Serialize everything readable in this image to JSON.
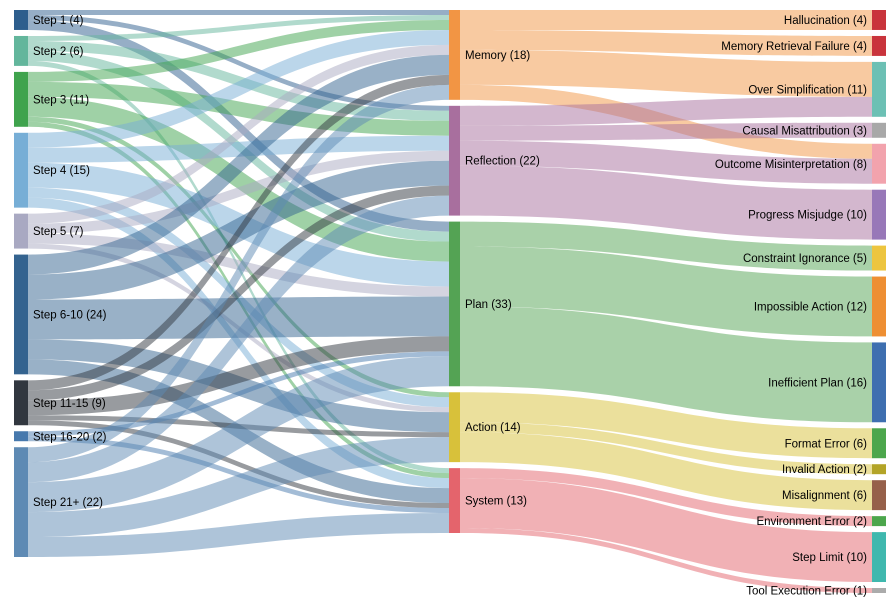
{
  "chart_data": {
    "type": "sankey",
    "title": "",
    "columns": [
      "step",
      "category",
      "error_type"
    ],
    "nodes": [
      {
        "id": "step-1",
        "label": "Step 1 (4)",
        "value": 4,
        "col": 0,
        "color": "#2d5e8d"
      },
      {
        "id": "step-2",
        "label": "Step 2 (6)",
        "value": 6,
        "col": 0,
        "color": "#63b69c"
      },
      {
        "id": "step-3",
        "label": "Step 3 (11)",
        "value": 11,
        "col": 0,
        "color": "#3fa34d"
      },
      {
        "id": "step-4",
        "label": "Step 4 (15)",
        "value": 15,
        "col": 0,
        "color": "#77aed6"
      },
      {
        "id": "step-5",
        "label": "Step 5 (7)",
        "value": 7,
        "col": 0,
        "color": "#a9a9c2"
      },
      {
        "id": "step-6-10",
        "label": "Step 6-10 (24)",
        "value": 24,
        "col": 0,
        "color": "#34638f"
      },
      {
        "id": "step-11-15",
        "label": "Step 11-15 (9)",
        "value": 9,
        "col": 0,
        "color": "#31373f"
      },
      {
        "id": "step-16-20",
        "label": "Step 16-20 (2)",
        "value": 2,
        "col": 0,
        "color": "#4779ad"
      },
      {
        "id": "step-21-plus",
        "label": "Step 21+ (22)",
        "value": 22,
        "col": 0,
        "color": "#5e8ab4"
      },
      {
        "id": "memory",
        "label": "Memory (18)",
        "value": 18,
        "col": 1,
        "color": "#f29544"
      },
      {
        "id": "reflection",
        "label": "Reflection (22)",
        "value": 22,
        "col": 1,
        "color": "#a86f9e"
      },
      {
        "id": "plan",
        "label": "Plan (33)",
        "value": 33,
        "col": 1,
        "color": "#54a354"
      },
      {
        "id": "action",
        "label": "Action (14)",
        "value": 14,
        "col": 1,
        "color": "#d8c13a"
      },
      {
        "id": "system",
        "label": "System (13)",
        "value": 13,
        "col": 1,
        "color": "#e4646c"
      },
      {
        "id": "hallucination",
        "label": "Hallucination (4)",
        "value": 4,
        "col": 2,
        "color": "#c9343c"
      },
      {
        "id": "memory-retrieval-failure",
        "label": "Memory Retrieval Failure (4)",
        "value": 4,
        "col": 2,
        "color": "#c9343c"
      },
      {
        "id": "over-simplification",
        "label": "Over Simplification (11)",
        "value": 11,
        "col": 2,
        "color": "#6cc0b4"
      },
      {
        "id": "causal-misattribution",
        "label": "Causal Misattribution (3)",
        "value": 3,
        "col": 2,
        "color": "#a8a8a8"
      },
      {
        "id": "outcome-misinterpretation",
        "label": "Outcome Misinterpretation (8)",
        "value": 8,
        "col": 2,
        "color": "#f2a3ad"
      },
      {
        "id": "progress-misjudge",
        "label": "Progress Misjudge (10)",
        "value": 10,
        "col": 2,
        "color": "#9878b8"
      },
      {
        "id": "constraint-ignorance",
        "label": "Constraint Ignorance (5)",
        "value": 5,
        "col": 2,
        "color": "#edc53f"
      },
      {
        "id": "impossible-action",
        "label": "Impossible Action (12)",
        "value": 12,
        "col": 2,
        "color": "#ee8f33"
      },
      {
        "id": "inefficient-plan",
        "label": "Inefficient Plan (16)",
        "value": 16,
        "col": 2,
        "color": "#3e6fb0"
      },
      {
        "id": "format-error",
        "label": "Format Error (6)",
        "value": 6,
        "col": 2,
        "color": "#4ca64c"
      },
      {
        "id": "invalid-action",
        "label": "Invalid Action (2)",
        "value": 2,
        "col": 2,
        "color": "#b3a427"
      },
      {
        "id": "misalignment",
        "label": "Misalignment (6)",
        "value": 6,
        "col": 2,
        "color": "#96604a"
      },
      {
        "id": "environment-error",
        "label": "Environment Error (2)",
        "value": 2,
        "col": 2,
        "color": "#4ca64c"
      },
      {
        "id": "step-limit",
        "label": "Step Limit (10)",
        "value": 10,
        "col": 2,
        "color": "#3fb8ae"
      },
      {
        "id": "tool-execution-error",
        "label": "Tool Execution Error (1)",
        "value": 1,
        "col": 2,
        "color": "#ababab"
      }
    ],
    "links": [
      {
        "source": "step-1",
        "target": "memory",
        "value": 1
      },
      {
        "source": "step-1",
        "target": "reflection",
        "value": 1
      },
      {
        "source": "step-1",
        "target": "plan",
        "value": 2
      },
      {
        "source": "step-2",
        "target": "memory",
        "value": 1
      },
      {
        "source": "step-2",
        "target": "reflection",
        "value": 2
      },
      {
        "source": "step-2",
        "target": "plan",
        "value": 2
      },
      {
        "source": "step-2",
        "target": "system",
        "value": 1
      },
      {
        "source": "step-3",
        "target": "memory",
        "value": 2
      },
      {
        "source": "step-3",
        "target": "reflection",
        "value": 3
      },
      {
        "source": "step-3",
        "target": "plan",
        "value": 4
      },
      {
        "source": "step-3",
        "target": "action",
        "value": 1
      },
      {
        "source": "step-3",
        "target": "system",
        "value": 1
      },
      {
        "source": "step-4",
        "target": "memory",
        "value": 3
      },
      {
        "source": "step-4",
        "target": "reflection",
        "value": 3
      },
      {
        "source": "step-4",
        "target": "plan",
        "value": 5
      },
      {
        "source": "step-4",
        "target": "action",
        "value": 2
      },
      {
        "source": "step-4",
        "target": "system",
        "value": 2
      },
      {
        "source": "step-5",
        "target": "memory",
        "value": 2
      },
      {
        "source": "step-5",
        "target": "reflection",
        "value": 2
      },
      {
        "source": "step-5",
        "target": "plan",
        "value": 2
      },
      {
        "source": "step-5",
        "target": "action",
        "value": 1
      },
      {
        "source": "step-6-10",
        "target": "memory",
        "value": 4
      },
      {
        "source": "step-6-10",
        "target": "reflection",
        "value": 5
      },
      {
        "source": "step-6-10",
        "target": "plan",
        "value": 8
      },
      {
        "source": "step-6-10",
        "target": "action",
        "value": 4
      },
      {
        "source": "step-6-10",
        "target": "system",
        "value": 3
      },
      {
        "source": "step-11-15",
        "target": "memory",
        "value": 2
      },
      {
        "source": "step-11-15",
        "target": "reflection",
        "value": 2
      },
      {
        "source": "step-11-15",
        "target": "plan",
        "value": 3
      },
      {
        "source": "step-11-15",
        "target": "action",
        "value": 1
      },
      {
        "source": "step-11-15",
        "target": "system",
        "value": 1
      },
      {
        "source": "step-16-20",
        "target": "plan",
        "value": 1
      },
      {
        "source": "step-16-20",
        "target": "system",
        "value": 1
      },
      {
        "source": "step-21-plus",
        "target": "memory",
        "value": 3
      },
      {
        "source": "step-21-plus",
        "target": "reflection",
        "value": 4
      },
      {
        "source": "step-21-plus",
        "target": "plan",
        "value": 6
      },
      {
        "source": "step-21-plus",
        "target": "action",
        "value": 5
      },
      {
        "source": "step-21-plus",
        "target": "system",
        "value": 4
      },
      {
        "source": "memory",
        "target": "hallucination",
        "value": 4
      },
      {
        "source": "memory",
        "target": "memory-retrieval-failure",
        "value": 4
      },
      {
        "source": "memory",
        "target": "over-simplification",
        "value": 7
      },
      {
        "source": "memory",
        "target": "outcome-misinterpretation",
        "value": 3
      },
      {
        "source": "reflection",
        "target": "over-simplification",
        "value": 4
      },
      {
        "source": "reflection",
        "target": "causal-misattribution",
        "value": 3
      },
      {
        "source": "reflection",
        "target": "outcome-misinterpretation",
        "value": 5
      },
      {
        "source": "reflection",
        "target": "progress-misjudge",
        "value": 10
      },
      {
        "source": "plan",
        "target": "constraint-ignorance",
        "value": 5
      },
      {
        "source": "plan",
        "target": "impossible-action",
        "value": 12
      },
      {
        "source": "plan",
        "target": "inefficient-plan",
        "value": 16
      },
      {
        "source": "action",
        "target": "format-error",
        "value": 6
      },
      {
        "source": "action",
        "target": "invalid-action",
        "value": 2
      },
      {
        "source": "action",
        "target": "misalignment",
        "value": 6
      },
      {
        "source": "system",
        "target": "environment-error",
        "value": 2
      },
      {
        "source": "system",
        "target": "step-limit",
        "value": 10
      },
      {
        "source": "system",
        "target": "tool-execution-error",
        "value": 1
      }
    ],
    "layout_hints": {
      "legend": "none",
      "grid": "off",
      "node_label_position": {
        "left_column": "right-of-node",
        "middle_column": "right-of-node",
        "right_column": "left-of-node"
      },
      "link_color": "source-node-color",
      "link_opacity": 0.5,
      "background": "#ffffff"
    }
  }
}
